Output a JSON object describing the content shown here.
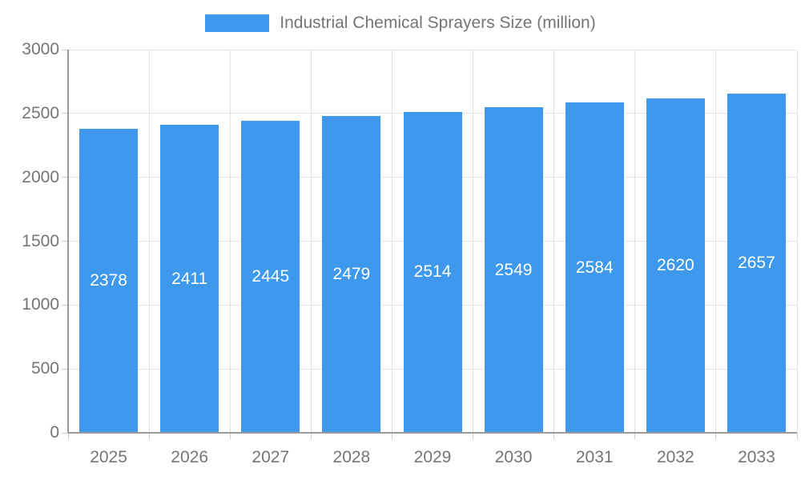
{
  "chart_data": {
    "type": "bar",
    "title": "Industrial Chemical Sprayers Size (million)",
    "xlabel": "",
    "ylabel": "",
    "categories": [
      "2025",
      "2026",
      "2027",
      "2028",
      "2029",
      "2030",
      "2031",
      "2032",
      "2033"
    ],
    "values": [
      2378,
      2411,
      2445,
      2479,
      2514,
      2549,
      2584,
      2620,
      2657
    ],
    "ylim": [
      0,
      3000
    ],
    "yticks": [
      0,
      500,
      1000,
      1500,
      2000,
      2500,
      3000
    ],
    "grid": true,
    "legend_position": "top",
    "colors": {
      "bar": "#3E99EC",
      "value_label": "#FFFFFF",
      "axis_text": "#757575",
      "gridline": "#E3E3E3",
      "axis_line": "#999999",
      "tick": "#CCCCCC",
      "background": "#FFFFFF"
    }
  }
}
